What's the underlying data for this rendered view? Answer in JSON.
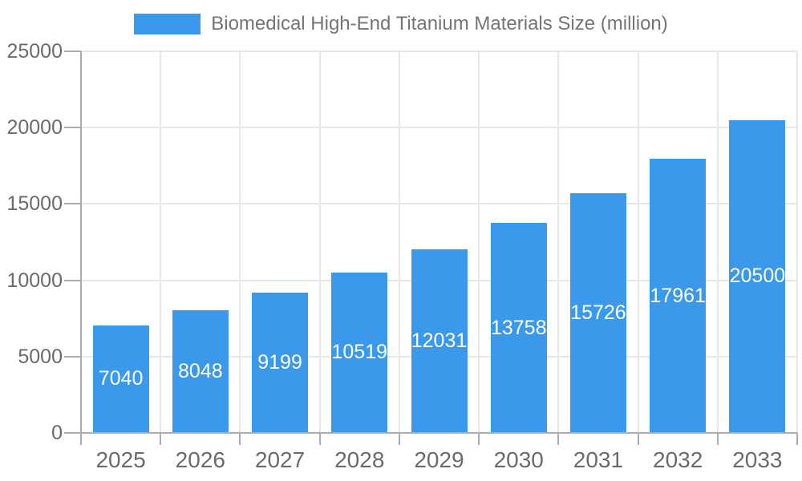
{
  "chart_data": {
    "type": "bar",
    "title": "Biomedical High-End Titanium Materials Size (million)",
    "categories": [
      "2025",
      "2026",
      "2027",
      "2028",
      "2029",
      "2030",
      "2031",
      "2032",
      "2033"
    ],
    "values": [
      7040,
      8048,
      9199,
      10519,
      12031,
      13758,
      15726,
      17961,
      20500
    ],
    "series": [
      {
        "name": "Biomedical High-End Titanium Materials Size (million)",
        "values": [
          7040,
          8048,
          9199,
          10519,
          12031,
          13758,
          15726,
          17961,
          20500
        ]
      }
    ],
    "xlabel": "",
    "ylabel": "",
    "ylim": [
      0,
      25000
    ],
    "yticks": [
      0,
      5000,
      10000,
      15000,
      20000,
      25000
    ],
    "ytick_labels": [
      "0",
      "5000",
      "10000",
      "15000",
      "20000",
      "25000"
    ],
    "grid": true,
    "legend_position": "top",
    "value_label_position": "inside-center",
    "colors": {
      "bar": "#3B99EC",
      "value_label": "#FFFFFF",
      "grid": "#E7E7E7",
      "axis": "#ACACAC",
      "tick_label": "#6B6B6B",
      "title": "#757575",
      "background": "#FFFFFF"
    }
  }
}
